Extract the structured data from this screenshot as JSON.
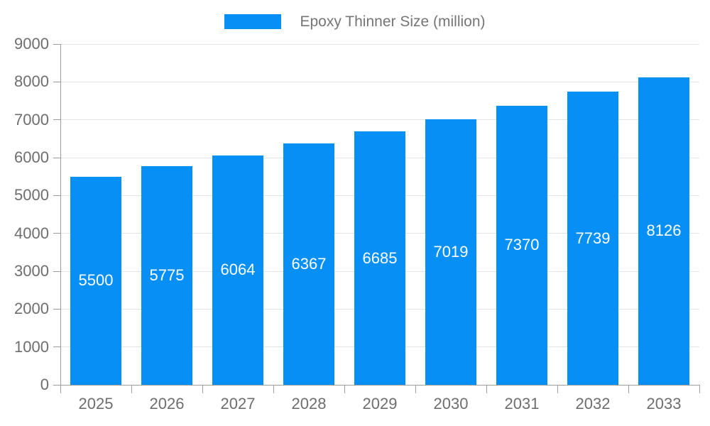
{
  "legend": {
    "label": "Epoxy Thinner Size (million)"
  },
  "colors": {
    "bar": "#0690f5",
    "axis_line": "#9e9e9e",
    "gridline": "#e3e3e3",
    "axis_text": "#6e6e6e",
    "value_text": "#ffffff",
    "legend_text": "#757575"
  },
  "chart_data": {
    "type": "bar",
    "title": "",
    "xlabel": "",
    "ylabel": "",
    "categories": [
      "2025",
      "2026",
      "2027",
      "2028",
      "2029",
      "2030",
      "2031",
      "2032",
      "2033"
    ],
    "series": [
      {
        "name": "Epoxy Thinner Size (million)",
        "values": [
          5500,
          5775,
          6064,
          6367,
          6685,
          7019,
          7370,
          7739,
          8126
        ]
      }
    ],
    "bar_value_labels": [
      "5500",
      "5775",
      "6064",
      "6367",
      "6685",
      "7019",
      "7370",
      "7739",
      "8126"
    ],
    "ylim": [
      0,
      9000
    ],
    "ytick_interval": 1000,
    "ytick_labels": [
      "0",
      "1000",
      "2000",
      "3000",
      "4000",
      "5000",
      "6000",
      "7000",
      "8000",
      "9000"
    ],
    "grid": true,
    "legend_position": "top-center",
    "value_label_position": "inside-center"
  }
}
